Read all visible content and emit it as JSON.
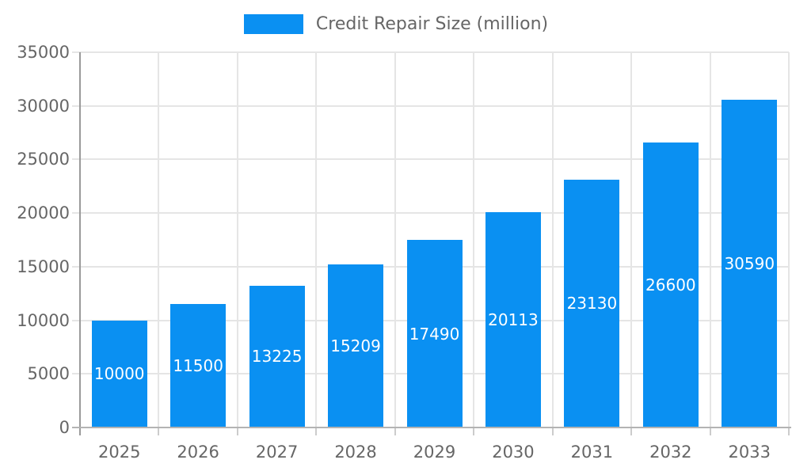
{
  "chart_data": {
    "type": "bar",
    "title": "Credit Repair Size (million)",
    "legend_position": "top",
    "categories": [
      "2025",
      "2026",
      "2027",
      "2028",
      "2029",
      "2030",
      "2031",
      "2032",
      "2033"
    ],
    "values": [
      10000,
      11500,
      13225,
      15209,
      17490,
      20113,
      23130,
      26600,
      30590
    ],
    "value_labels": [
      "10000",
      "11500",
      "13225",
      "15209",
      "17490",
      "20113",
      "23130",
      "26600",
      "30590"
    ],
    "ylim": [
      0,
      35000
    ],
    "ytick_step": 5000,
    "ytick_labels": [
      "0",
      "5000",
      "10000",
      "15000",
      "20000",
      "25000",
      "30000",
      "35000"
    ],
    "xlabel": "",
    "ylabel": "",
    "grid": true,
    "colors": {
      "bar": "#0a90f2",
      "gridline": "#e5e5e5",
      "axis_y": "#9a9a9a",
      "axis_x": "#b3b3b3",
      "tick": "#cccccc",
      "tick_text": "#666666",
      "legend_text": "#666666",
      "value_text": "#ffffff",
      "background": "#ffffff"
    }
  }
}
